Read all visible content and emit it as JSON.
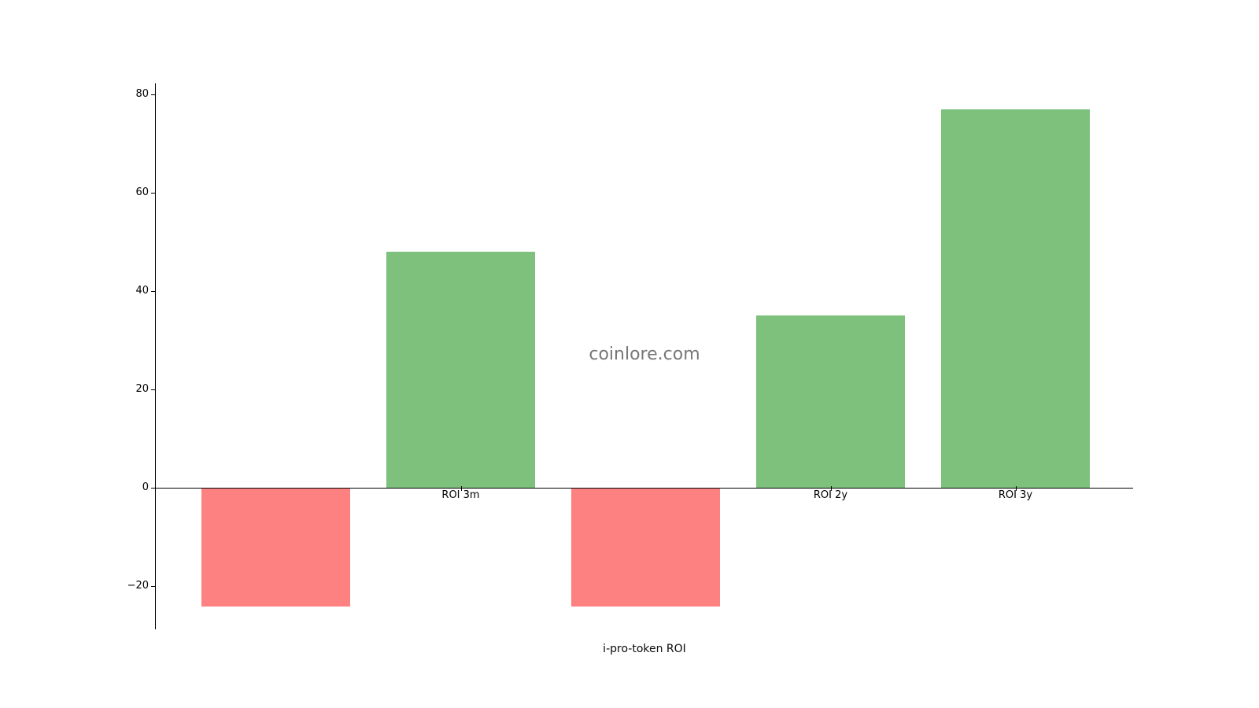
{
  "watermark": "coinlore.com",
  "title": "i-pro-token ROI",
  "colors": {
    "positive_bar": "#7dc17d",
    "negative_bar": "#fd8181",
    "axis": "#000000",
    "watermark_text": "#787878",
    "tick_text": "#000000"
  },
  "chart_data": {
    "type": "bar",
    "title": "i-pro-token ROI",
    "xlabel": "",
    "ylabel": "",
    "categories": [
      "",
      "ROI 3m",
      "",
      "ROI 2y",
      "ROI 3y"
    ],
    "values": [
      -24,
      48,
      -24,
      35,
      77
    ],
    "bar_colors": [
      "#fd8181",
      "#7dc17d",
      "#fd8181",
      "#7dc17d",
      "#7dc17d"
    ],
    "ylim": [
      -29,
      82
    ],
    "yticks": [
      {
        "value": 80,
        "label": "80"
      },
      {
        "value": 60,
        "label": "60"
      },
      {
        "value": 40,
        "label": "40"
      },
      {
        "value": 20,
        "label": "20"
      },
      {
        "value": 0,
        "label": "0"
      },
      {
        "value": -20,
        "label": "−20"
      }
    ],
    "grid": false,
    "legend": "none",
    "watermark": "coinlore.com"
  }
}
